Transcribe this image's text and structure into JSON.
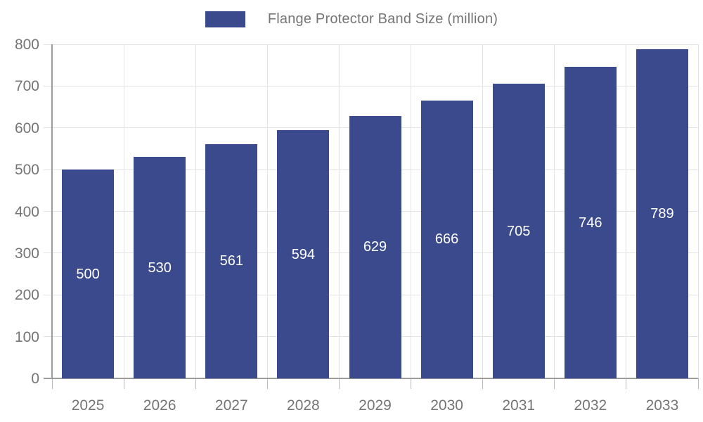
{
  "chart_data": {
    "type": "bar",
    "title": "Flange Protector Band Size (million)",
    "categories": [
      "2025",
      "2026",
      "2027",
      "2028",
      "2029",
      "2030",
      "2031",
      "2032",
      "2033"
    ],
    "values": [
      500,
      530,
      561,
      594,
      629,
      666,
      705,
      746,
      789
    ],
    "xlabel": "",
    "ylabel": "",
    "ylim": [
      0,
      800
    ],
    "ytick_step": 100,
    "grid": true,
    "legend_position": "top-center",
    "bar_color": "#3a4a8c",
    "value_label_color": "#ffffff",
    "axis_text_color": "#757575",
    "gridline_color": "#e3e3e3",
    "axis_line_color": "#9b9b9b"
  }
}
